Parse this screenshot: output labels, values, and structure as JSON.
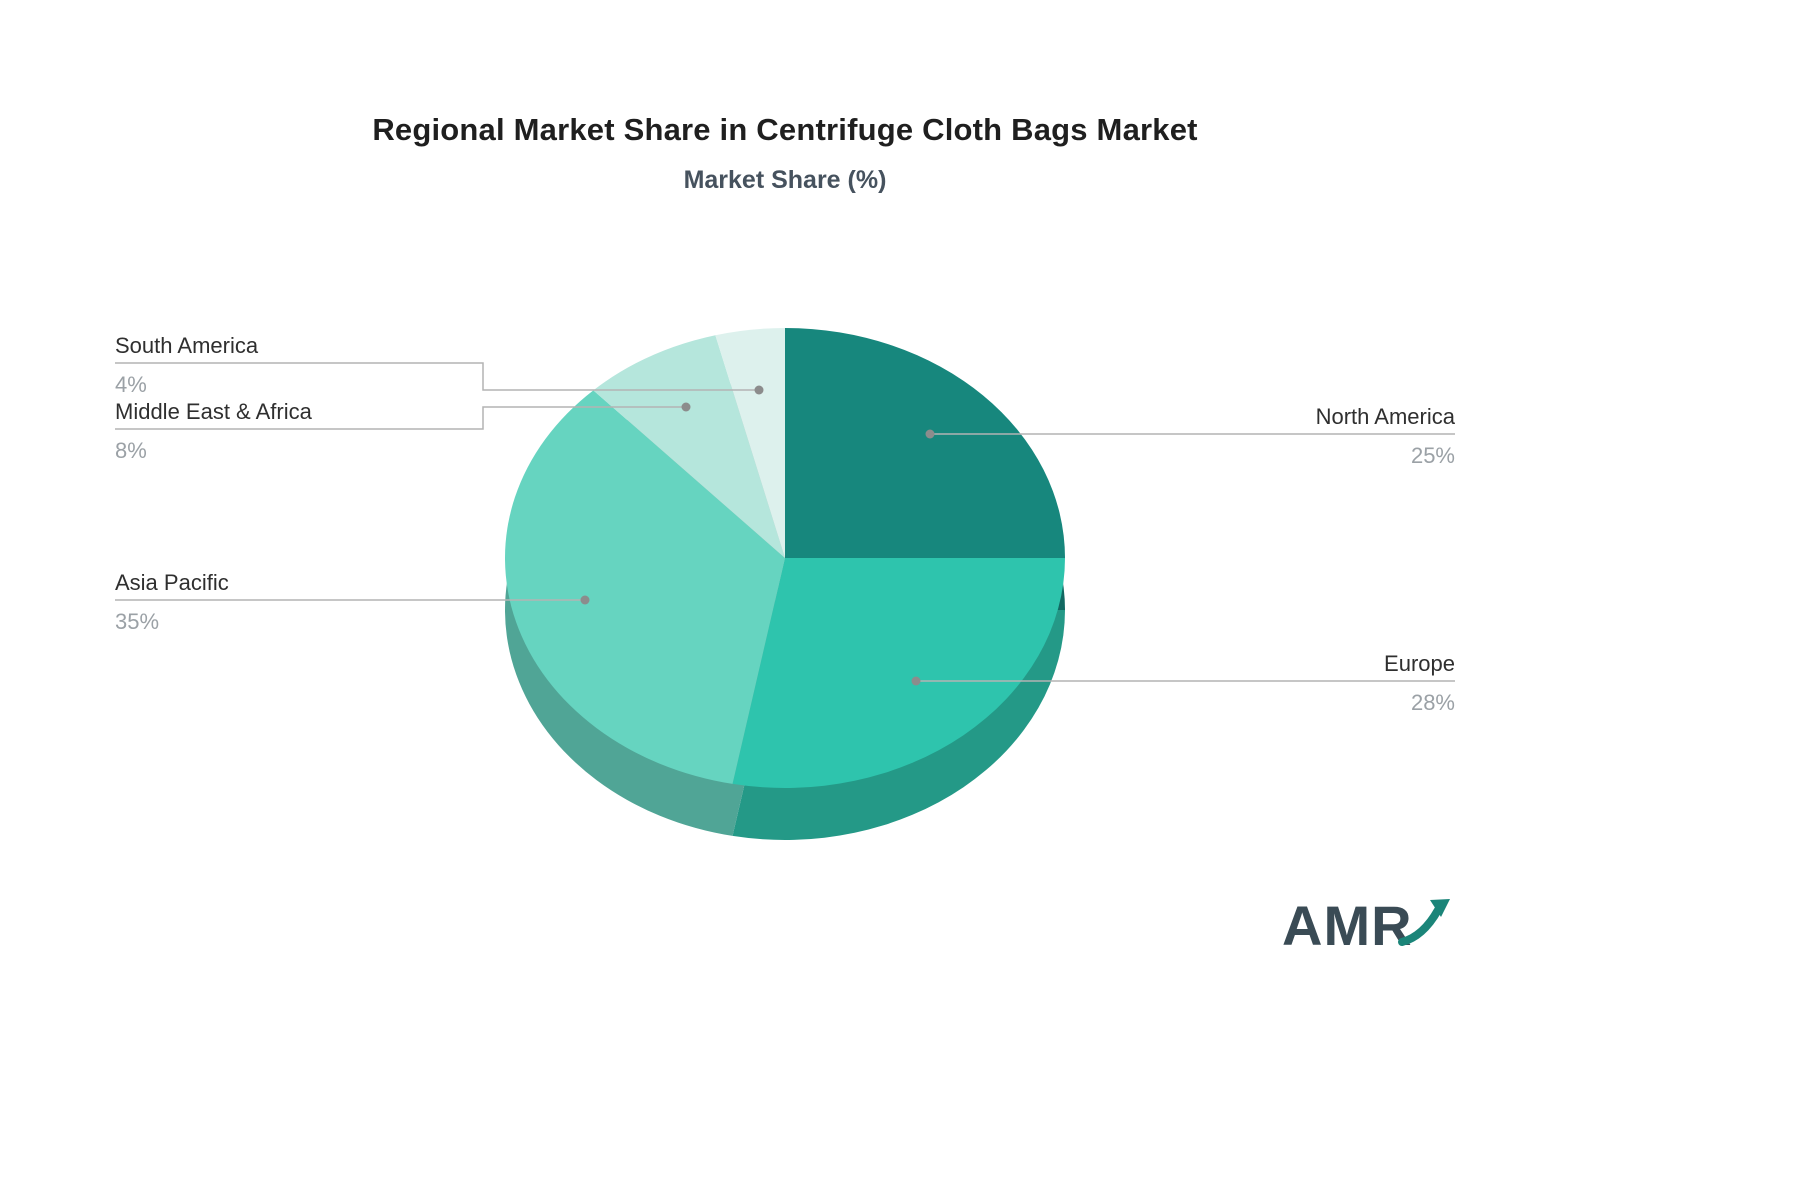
{
  "header": {
    "title": "Regional Market Share in Centrifuge Cloth Bags Market",
    "subtitle": "Market Share (%)"
  },
  "chart_data": {
    "type": "pie",
    "title": "Regional Market Share in Centrifuge Cloth Bags Market",
    "subtitle": "Market Share (%)",
    "unit": "%",
    "start_angle_deg": -90,
    "direction": "clockwise",
    "legend": "none",
    "style": "3d-pie with external leader-line labels",
    "slices": [
      {
        "label": "North America",
        "value": 25,
        "pct": "25%",
        "color": "#17877d"
      },
      {
        "label": "Europe",
        "value": 28,
        "pct": "28%",
        "color": "#2ec4ad"
      },
      {
        "label": "Asia Pacific",
        "value": 35,
        "pct": "35%",
        "color": "#66d4c0"
      },
      {
        "label": "Middle East & Africa",
        "value": 8,
        "pct": "8%",
        "color": "#b5e6dc"
      },
      {
        "label": "South America",
        "value": 4,
        "pct": "4%",
        "color": "#ddf1ed"
      }
    ]
  },
  "logo": {
    "text": "AMR"
  }
}
